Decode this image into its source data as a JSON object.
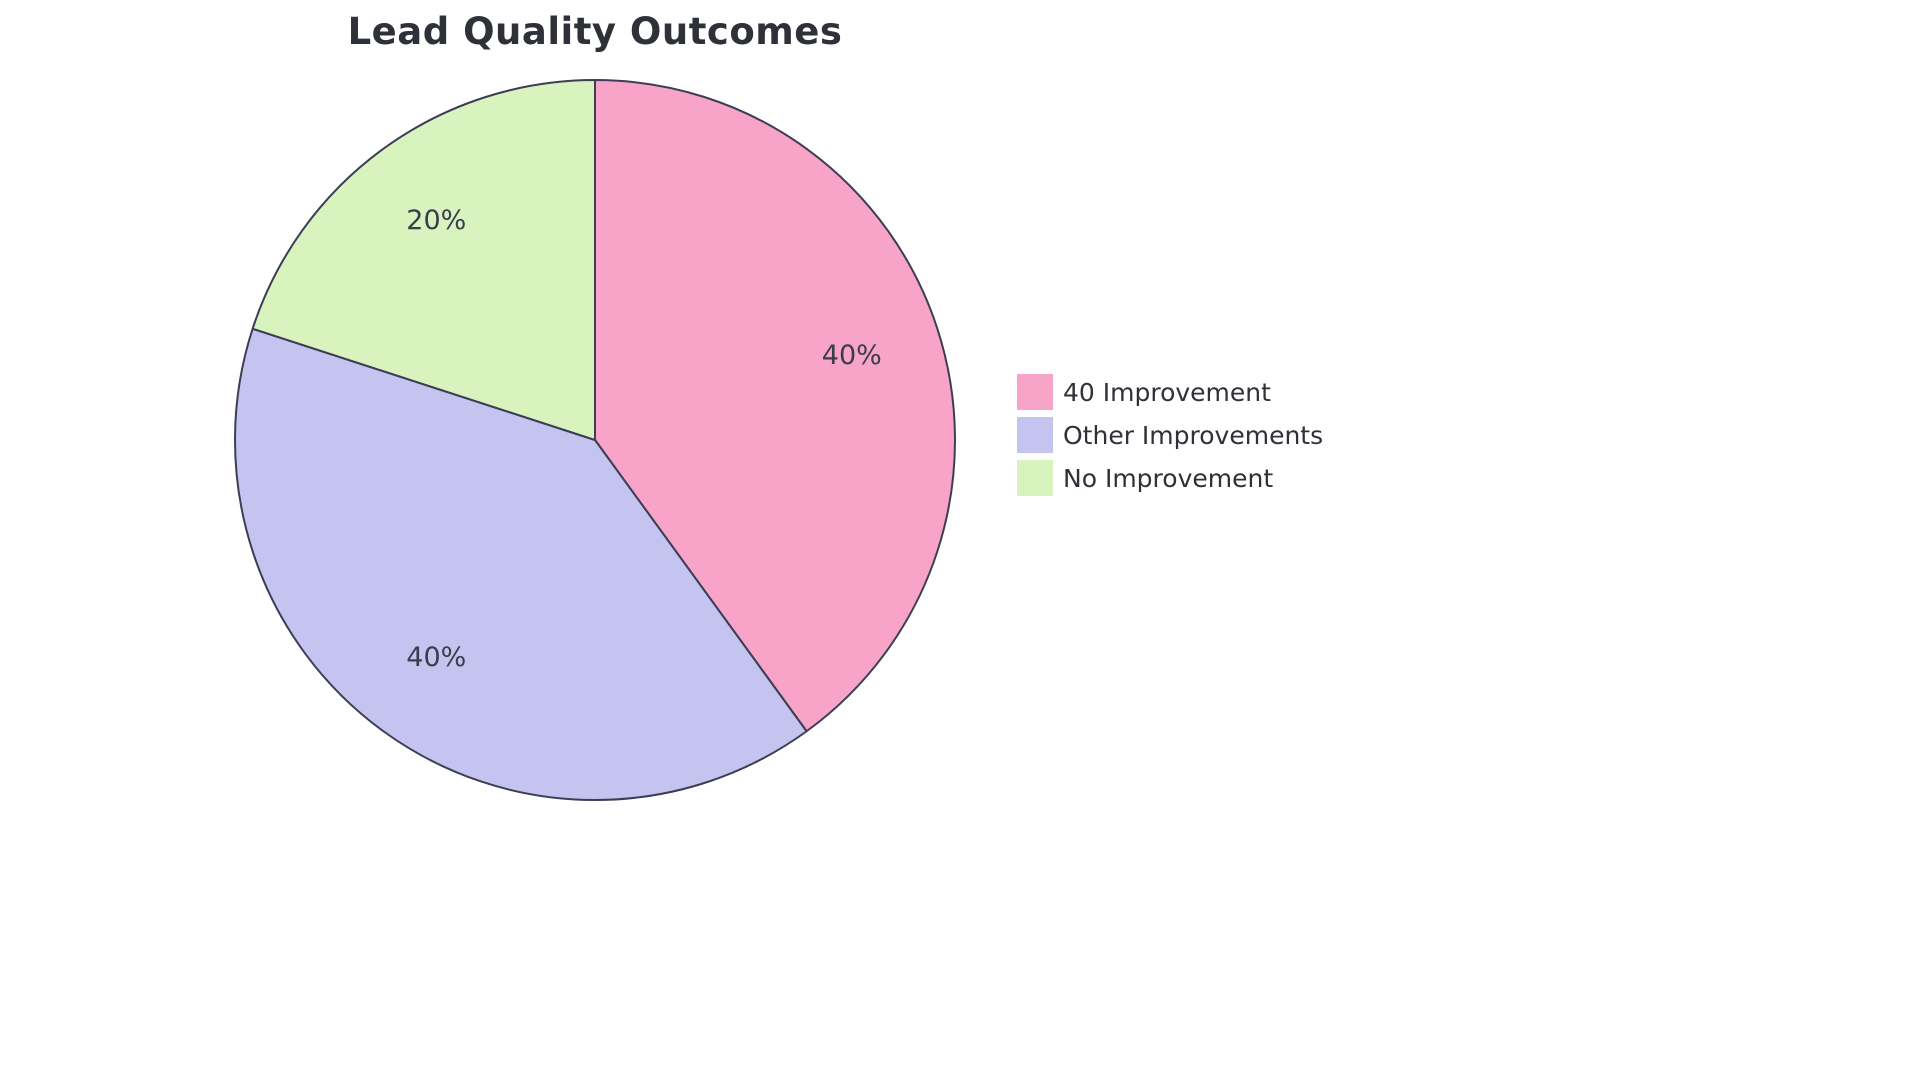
{
  "chart_data": {
    "type": "pie",
    "title": "Lead Quality Outcomes",
    "legend_position": "right",
    "start_angle_deg": 0,
    "direction": "clockwise",
    "stroke_color": "#3b3e54",
    "slices": [
      {
        "label": "40 Improvement",
        "value": 40,
        "pct_label": "40%",
        "color": "#f8a3c8"
      },
      {
        "label": "Other Improvements",
        "value": 40,
        "pct_label": "40%",
        "color": "#c5c4f1"
      },
      {
        "label": "No Improvement",
        "value": 20,
        "pct_label": "20%",
        "color": "#d8f3be"
      }
    ]
  }
}
